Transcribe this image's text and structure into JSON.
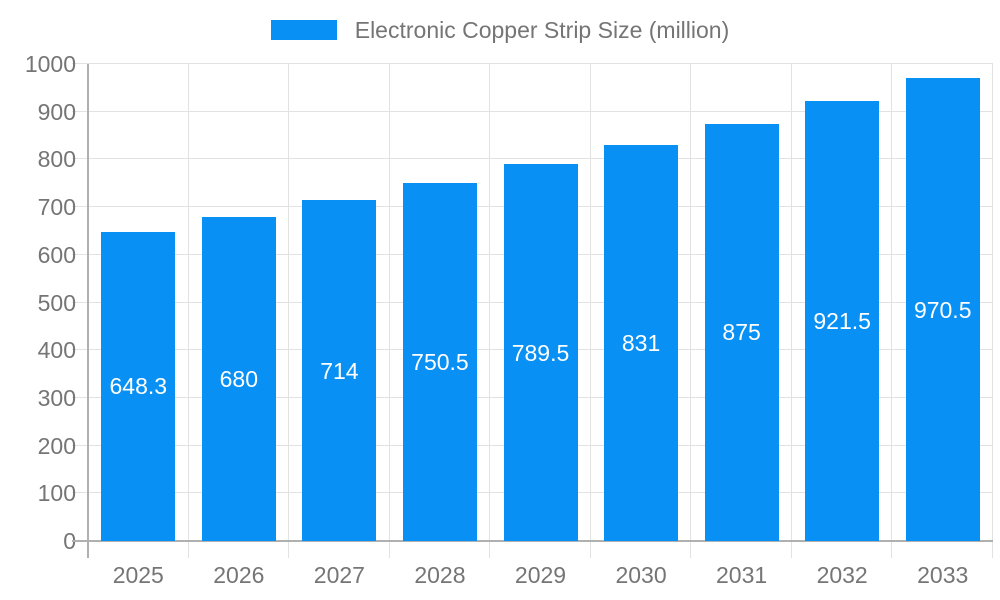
{
  "chart_data": {
    "type": "bar",
    "title": "Electronic Copper Strip Size (million)",
    "categories": [
      "2025",
      "2026",
      "2027",
      "2028",
      "2029",
      "2030",
      "2031",
      "2032",
      "2033"
    ],
    "values": [
      648.3,
      680,
      714,
      750.5,
      789.5,
      831,
      875,
      921.5,
      970.5
    ],
    "value_labels": [
      "648.3",
      "680",
      "714",
      "750.5",
      "789.5",
      "831",
      "875",
      "921.5",
      "970.5"
    ],
    "xlabel": "",
    "ylabel": "",
    "ylim": [
      0,
      1000
    ],
    "ytick_step": 100,
    "ytick_labels": [
      "0",
      "100",
      "200",
      "300",
      "400",
      "500",
      "600",
      "700",
      "800",
      "900",
      "1000"
    ],
    "grid": true,
    "legend_position": "top-center",
    "colors": {
      "bar": "#0990f5",
      "bar_value_text": "#ffffff",
      "axis_text": "#757575",
      "legend_text": "#757575",
      "gridline": "#e2e2e2",
      "axis_line": "#b0b0b0"
    }
  }
}
